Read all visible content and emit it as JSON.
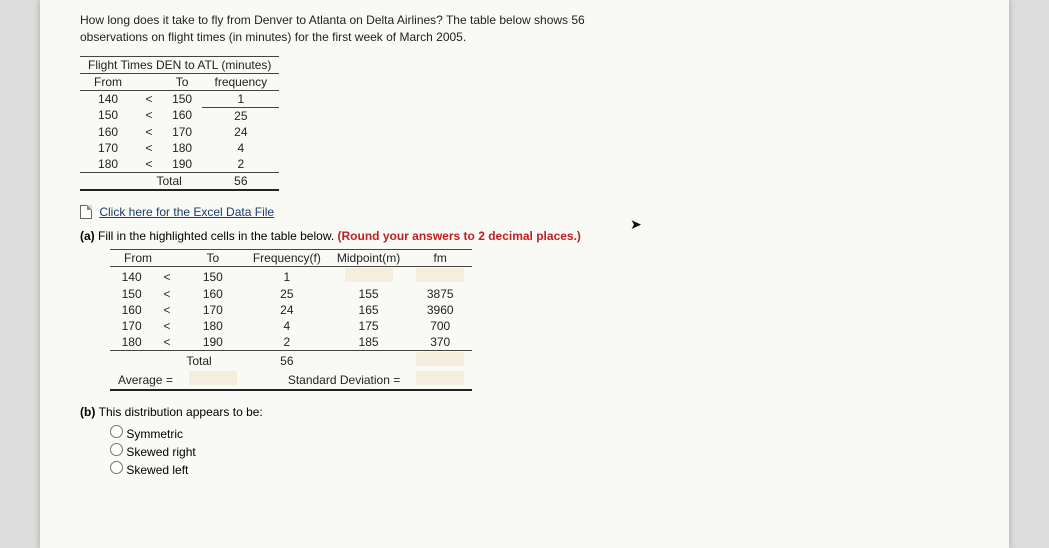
{
  "intro": {
    "line1": "How long does it take to fly from Denver to Atlanta on Delta Airlines? The table below shows 56",
    "line2": "observations on flight times (in minutes) for the first week of March 2005."
  },
  "table1": {
    "title": "Flight Times DEN to ATL (minutes)",
    "headers": {
      "from": "From",
      "to": "To",
      "freq": "frequency"
    },
    "rows": [
      {
        "from": "140",
        "op": "<",
        "to": "150",
        "freq": "1"
      },
      {
        "from": "150",
        "op": "<",
        "to": "160",
        "freq": "25"
      },
      {
        "from": "160",
        "op": "<",
        "to": "170",
        "freq": "24"
      },
      {
        "from": "170",
        "op": "<",
        "to": "180",
        "freq": "4"
      },
      {
        "from": "180",
        "op": "<",
        "to": "190",
        "freq": "2"
      }
    ],
    "total_label": "Total",
    "total_value": "56"
  },
  "link": {
    "text": "Click here for the Excel Data File"
  },
  "part_a": {
    "label": "(a)",
    "text": "Fill in the highlighted cells in the table below.",
    "hint": "(Round your answers to 2 decimal places.)"
  },
  "table2": {
    "headers": {
      "from": "From",
      "to": "To",
      "freq": "Frequency(f)",
      "mid": "Midpoint(m)",
      "fm": "fm"
    },
    "rows": [
      {
        "from": "140",
        "op": "<",
        "to": "150",
        "freq": "1",
        "mid": "",
        "fm": ""
      },
      {
        "from": "150",
        "op": "<",
        "to": "160",
        "freq": "25",
        "mid": "155",
        "fm": "3875"
      },
      {
        "from": "160",
        "op": "<",
        "to": "170",
        "freq": "24",
        "mid": "165",
        "fm": "3960"
      },
      {
        "from": "170",
        "op": "<",
        "to": "180",
        "freq": "4",
        "mid": "175",
        "fm": "700"
      },
      {
        "from": "180",
        "op": "<",
        "to": "190",
        "freq": "2",
        "mid": "185",
        "fm": "370"
      }
    ],
    "total_label": "Total",
    "total_value": "56",
    "avg_label": "Average =",
    "sd_label": "Standard Deviation ="
  },
  "part_b": {
    "label": "(b)",
    "text": "This distribution appears to be:",
    "options": [
      "Symmetric",
      "Skewed right",
      "Skewed left"
    ]
  }
}
